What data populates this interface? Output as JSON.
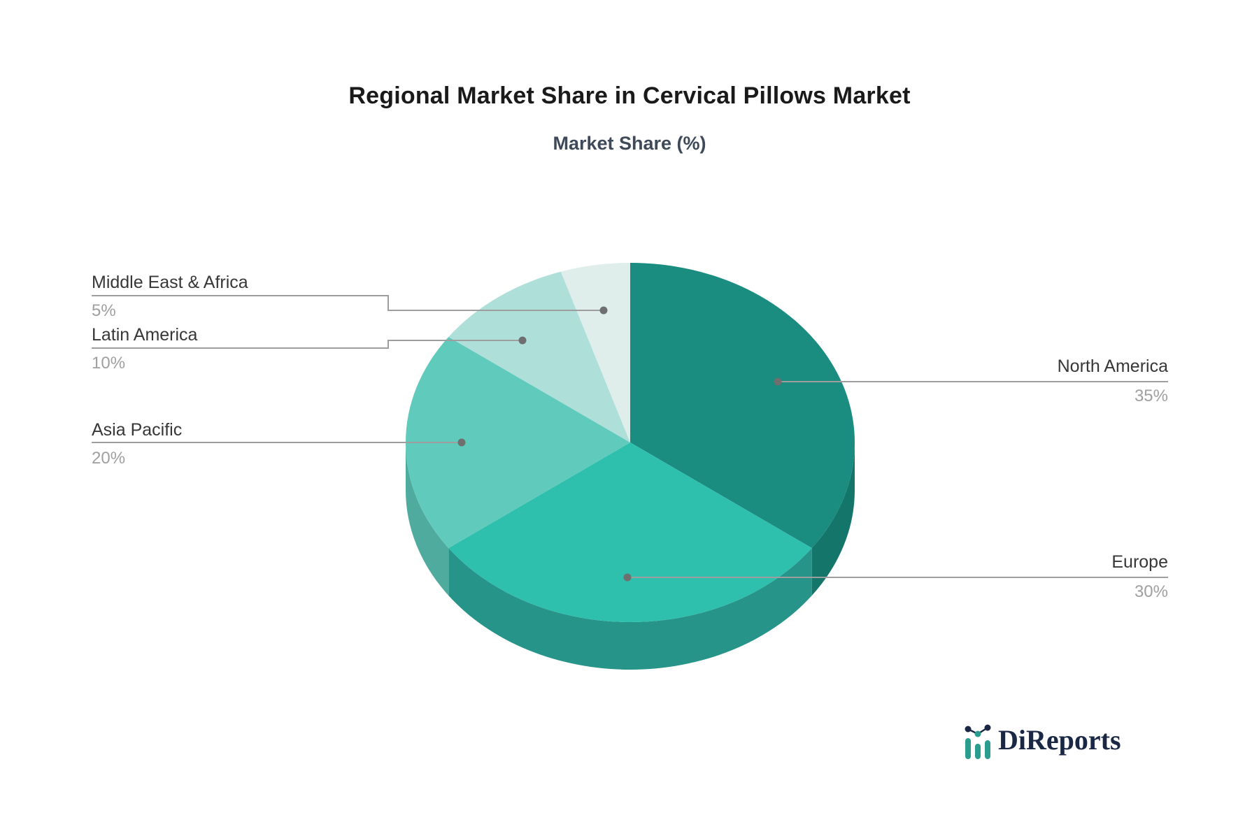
{
  "header": {
    "title": "Regional Market Share in Cervical Pillows Market",
    "subtitle": "Market Share (%)"
  },
  "logo": {
    "text": "DiReports",
    "icon": "bar-chart-trend-icon",
    "text_color": "#1b2845",
    "accent_color": "#2a9d8f"
  },
  "chart_data": {
    "type": "pie",
    "style": "3d",
    "title": "Regional Market Share in Cervical Pillows Market",
    "subtitle": "Market Share (%)",
    "unit": "%",
    "start_angle": "12-oclock",
    "direction": "clockwise",
    "slices": [
      {
        "label": "North America",
        "value": 35,
        "pct": "35%",
        "color": "#1b8c80",
        "side_color": "#14766b"
      },
      {
        "label": "Europe",
        "value": 30,
        "pct": "30%",
        "color": "#2fbfad",
        "side_color": "#27948a"
      },
      {
        "label": "Asia Pacific",
        "value": 20,
        "pct": "20%",
        "color": "#60cbbc",
        "side_color": "#4fab9e"
      },
      {
        "label": "Latin America",
        "value": 10,
        "pct": "10%",
        "color": "#aedfd8",
        "side_color": "#8fc6bd"
      },
      {
        "label": "Middle East & Africa",
        "value": 5,
        "pct": "5%",
        "color": "#dfeeeb",
        "side_color": "#bcd6d1"
      }
    ],
    "leader_line_color": "#9e9e9e",
    "dot_color": "#6f6f6f",
    "legend_position": "leader-labels",
    "label_color": "#373737",
    "value_color": "#9f9f9f"
  }
}
